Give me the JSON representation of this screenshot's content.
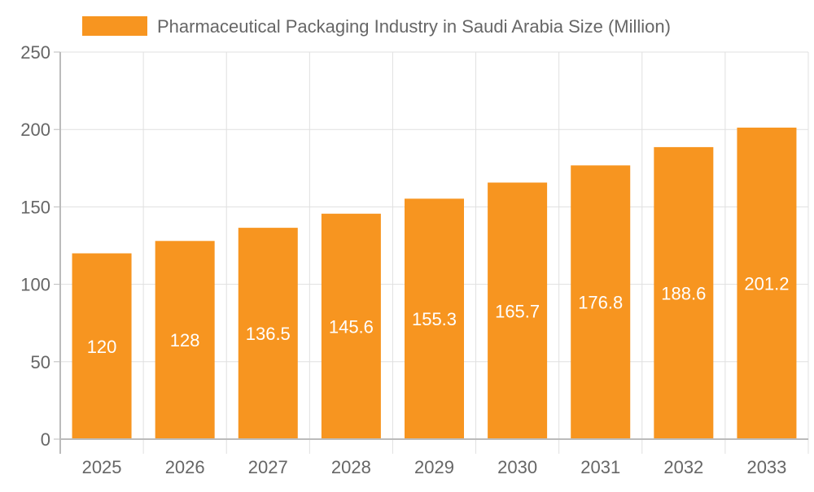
{
  "chart_data": {
    "type": "bar",
    "title": "",
    "xlabel": "",
    "ylabel": "",
    "categories": [
      "2025",
      "2026",
      "2027",
      "2028",
      "2029",
      "2030",
      "2031",
      "2032",
      "2033"
    ],
    "series": [
      {
        "name": "Pharmaceutical Packaging Industry in Saudi Arabia Size (Million)",
        "values": [
          120,
          128,
          136.5,
          145.6,
          155.3,
          165.7,
          176.8,
          188.6,
          201.2
        ],
        "color": "#f79520"
      }
    ],
    "data_labels": [
      "120",
      "128",
      "136.5",
      "145.6",
      "155.3",
      "165.7",
      "176.8",
      "188.6",
      "201.2"
    ],
    "ylim": [
      0,
      250
    ],
    "yticks": [
      "0",
      "50",
      "100",
      "150",
      "200",
      "250"
    ],
    "grid": true,
    "legend_position": "top"
  }
}
